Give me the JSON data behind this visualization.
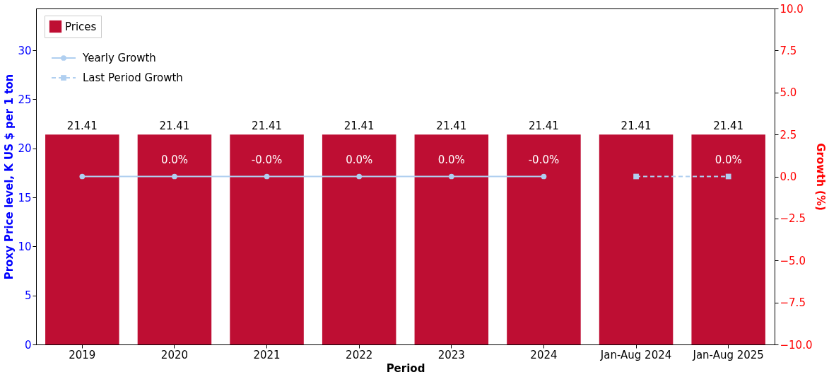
{
  "chart_data": {
    "type": "bar",
    "xlabel": "Period",
    "ylabel": "Proxy Price level, K US $ per 1 ton",
    "y2label": "Growth (%)",
    "categories": [
      "2019",
      "2020",
      "2021",
      "2022",
      "2023",
      "2024",
      "Jan-Aug 2024",
      "Jan-Aug 2025"
    ],
    "series": [
      {
        "name": "Prices",
        "type": "bar",
        "color": "#be0e33",
        "values": [
          21.41,
          21.41,
          21.41,
          21.41,
          21.41,
          21.41,
          21.41,
          21.41
        ]
      },
      {
        "name": "Yearly Growth",
        "type": "line",
        "axis": "y2",
        "color": "#b0cff0",
        "marker": "circle",
        "line_style": "solid",
        "values": [
          0,
          0,
          0,
          0,
          0,
          0,
          null,
          null
        ],
        "value_labels": [
          null,
          "0.0%",
          "-0.0%",
          "0.0%",
          "0.0%",
          "-0.0%",
          null,
          null
        ]
      },
      {
        "name": "Last Period Growth",
        "type": "line",
        "axis": "y2",
        "color": "#b0cff0",
        "marker": "square",
        "line_style": "dashed",
        "values": [
          null,
          null,
          null,
          null,
          null,
          null,
          0,
          0
        ],
        "value_labels": [
          null,
          null,
          null,
          null,
          null,
          null,
          null,
          "0.0%"
        ]
      }
    ],
    "data_labels": true,
    "ylim": [
      0,
      34.26
    ],
    "yticks": [
      0,
      5,
      10,
      15,
      20,
      25,
      30
    ],
    "y2lim": [
      -10,
      10
    ],
    "y2ticks": [
      {
        "value": -10,
        "label": "−10.0"
      },
      {
        "value": -7.5,
        "label": "−7.5"
      },
      {
        "value": -5,
        "label": "−5.0"
      },
      {
        "value": -2.5,
        "label": "−2.5"
      },
      {
        "value": 0,
        "label": "0.0"
      },
      {
        "value": 2.5,
        "label": "2.5"
      },
      {
        "value": 5,
        "label": "5.0"
      },
      {
        "value": 7.5,
        "label": "7.5"
      },
      {
        "value": 10,
        "label": "10.0"
      }
    ],
    "grid": false,
    "legend": "top left"
  }
}
